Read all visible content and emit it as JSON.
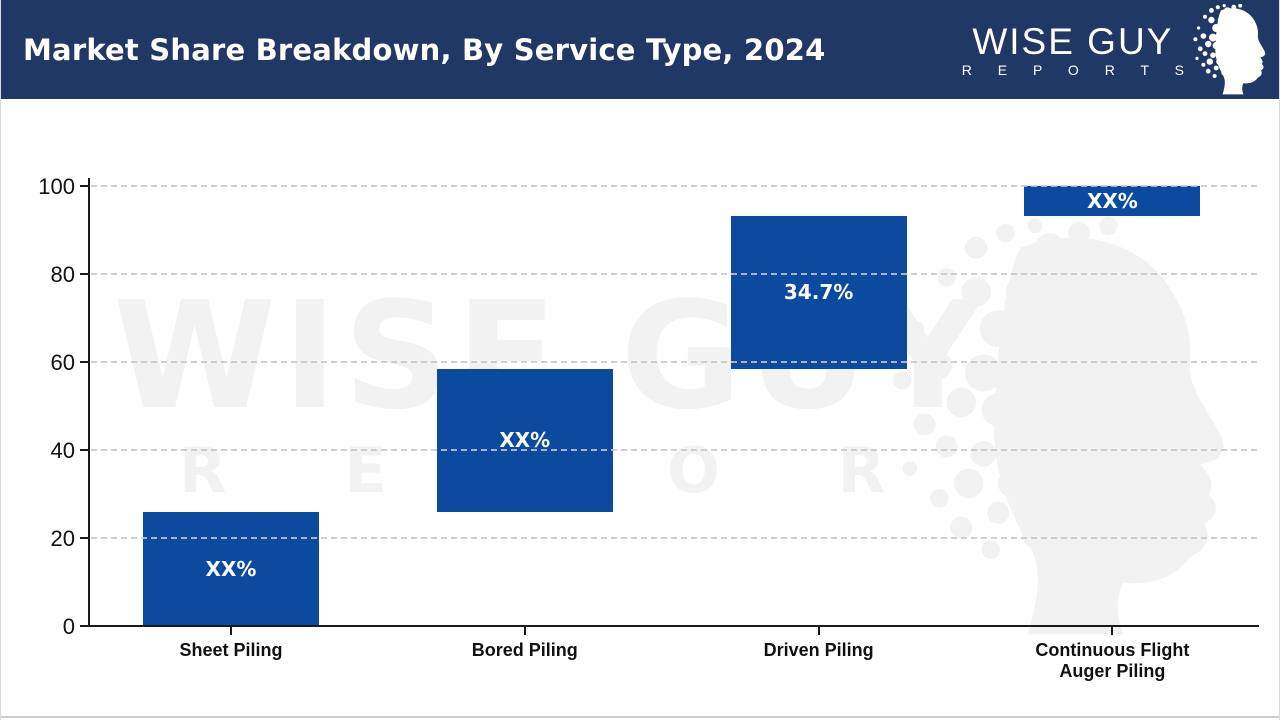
{
  "header": {
    "title": "Market Share Breakdown, By Service Type, 2024",
    "bg_color": "#203864",
    "logo": {
      "line1": "WISE GUY",
      "line2": "R E P O R T S"
    }
  },
  "watermark": {
    "line1": "WISE GUY",
    "line2": "R E P O R T S",
    "color": "#f2f2f3"
  },
  "chart_data": {
    "type": "bar",
    "subtype": "waterfall",
    "title": "Market Share Breakdown, By Service Type, 2024",
    "categories": [
      "Sheet Piling",
      "Bored Piling",
      "Driven Piling",
      "Continuous Flight Auger Piling"
    ],
    "segments": [
      {
        "category": "Sheet Piling",
        "start": 0,
        "end": 26,
        "value_label": "XX%"
      },
      {
        "category": "Bored Piling",
        "start": 26,
        "end": 58.5,
        "value_label": "XX%"
      },
      {
        "category": "Driven Piling",
        "start": 58.5,
        "end": 93.2,
        "value_label": "34.7%"
      },
      {
        "category": "Continuous Flight Auger Piling",
        "start": 93.2,
        "end": 100,
        "value_label": "XX%"
      }
    ],
    "xlabel": "",
    "ylabel": "",
    "ylim": [
      0,
      100
    ],
    "yticks": [
      0,
      20,
      40,
      60,
      80,
      100
    ],
    "grid": "horizontal dashed, drawn over bars",
    "legend": "none",
    "bar_color": "#0b4a9e",
    "value_label_color": "#ffffff",
    "axis_color": "#1a1a1a",
    "grid_color": "#c8c8c8"
  }
}
